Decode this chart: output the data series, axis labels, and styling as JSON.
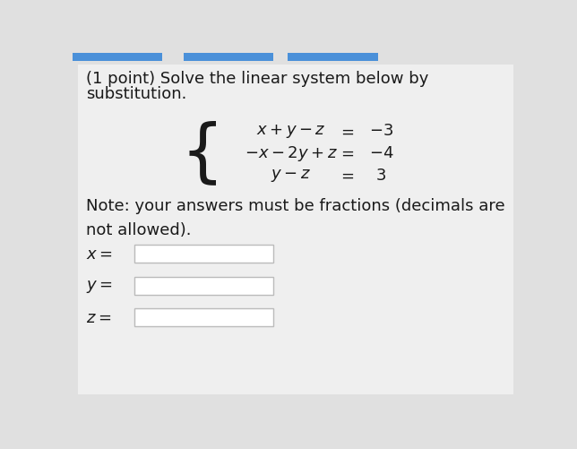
{
  "bg_color": "#e0e0e0",
  "card_color": "#efefef",
  "top_bar_color": "#4a90d9",
  "title_line1": "(1 point) Solve the linear system below by",
  "title_line2": "substitution.",
  "note_text": "Note: your answers must be fractions (decimals are\nnot allowed).",
  "input_box_color": "#ffffff",
  "input_border_color": "#bbbbbb",
  "text_color": "#1a1a1a",
  "font_size_title": 13,
  "font_size_eq": 13,
  "font_size_note": 13,
  "font_size_label": 13,
  "brace_fontsize": 55
}
